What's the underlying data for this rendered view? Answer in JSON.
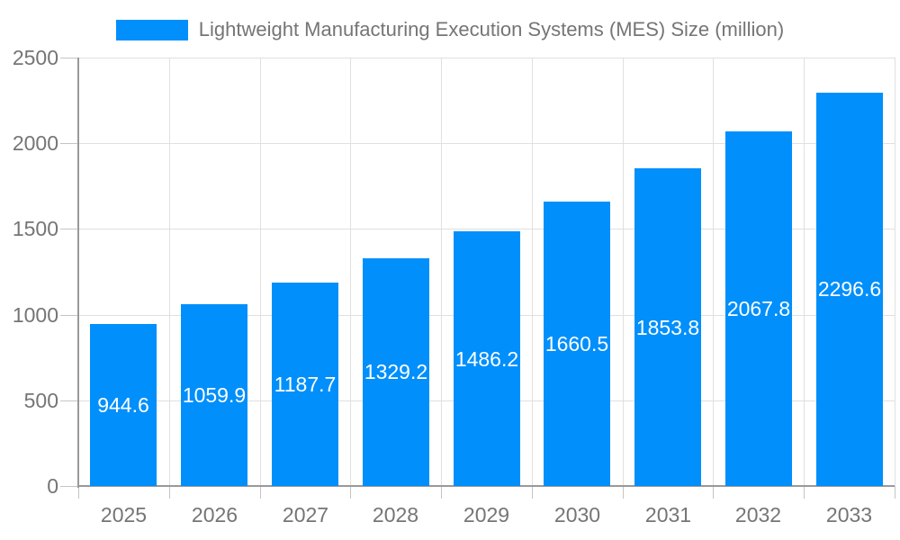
{
  "chart_data": {
    "type": "bar",
    "title": "Lightweight Manufacturing Execution Systems (MES) Size (million)",
    "categories": [
      "2025",
      "2026",
      "2027",
      "2028",
      "2029",
      "2030",
      "2031",
      "2032",
      "2033"
    ],
    "values": [
      944.6,
      1059.9,
      1187.7,
      1329.2,
      1486.2,
      1660.5,
      1853.8,
      2067.8,
      2296.6
    ],
    "value_labels": [
      "944.6",
      "1059.9",
      "1187.7",
      "1329.2",
      "1486.2",
      "1660.5",
      "1853.8",
      "2067.8",
      "2296.6"
    ],
    "xlabel": "",
    "ylabel": "",
    "ylim": [
      0,
      2500
    ],
    "yticks": [
      "0",
      "500",
      "1000",
      "1500",
      "2000",
      "2500"
    ],
    "grid": true,
    "legend_position": "top",
    "value_label_position": "inside-center",
    "colors": {
      "bar": "#008FFB",
      "grid": "#e0e0e0",
      "axis": "#999999",
      "tick": "#c4c4c4",
      "tick_label": "#757575",
      "value_label": "#ffffff",
      "background": "#ffffff"
    }
  }
}
